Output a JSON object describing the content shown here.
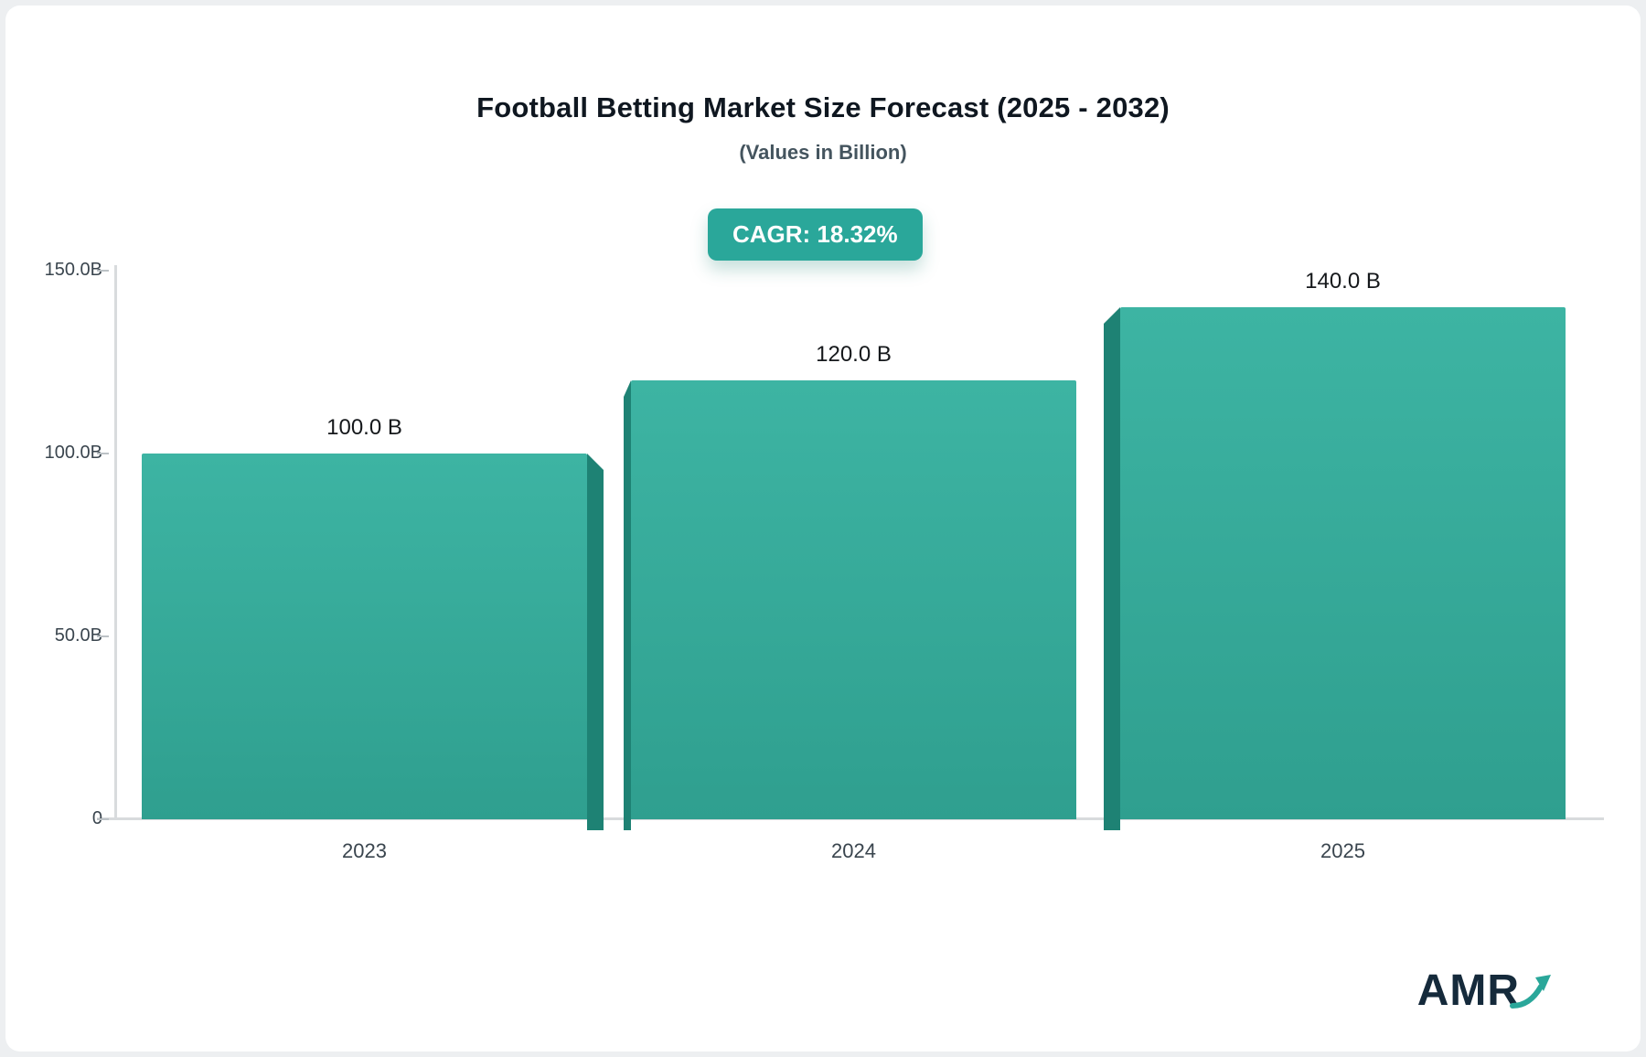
{
  "chart_data": {
    "type": "bar",
    "title": "Football Betting Market Size Forecast (2025 - 2032)",
    "subtitle": "(Values in Billion)",
    "annotation": "CAGR: 18.32%",
    "categories": [
      "2023",
      "2024",
      "2025"
    ],
    "values": [
      100.0,
      120.0,
      140.0
    ],
    "value_labels": [
      "100.0 B",
      "120.0 B",
      "140.0 B"
    ],
    "xlabel": "",
    "ylabel": "",
    "ylim": [
      0,
      150
    ],
    "yticks": [
      {
        "value": 150,
        "label": "150.0B"
      },
      {
        "value": 100,
        "label": "100.0B"
      },
      {
        "value": 50,
        "label": "50.0B"
      },
      {
        "value": 0,
        "label": "0"
      }
    ],
    "grid": false,
    "legend": "none",
    "bar_gradient_top": "#3db4a3",
    "bar_gradient_bottom": "#2f9f8f",
    "bar_edge_color": "#1e8274",
    "bar_edges": [
      "right",
      "left",
      "left"
    ],
    "bar_edge_widths": [
      18,
      8,
      18
    ]
  },
  "badge": {
    "label": "CAGR: 18.32%",
    "background": "#2aa79a",
    "text_color": "#ffffff"
  },
  "logo": {
    "text": "AMR",
    "text_color": "#152a3b",
    "arrow_color": "#2aa79a"
  },
  "page": {
    "background": "#edeff1",
    "card_background": "#ffffff",
    "axis_color": "#d8dbdd"
  }
}
